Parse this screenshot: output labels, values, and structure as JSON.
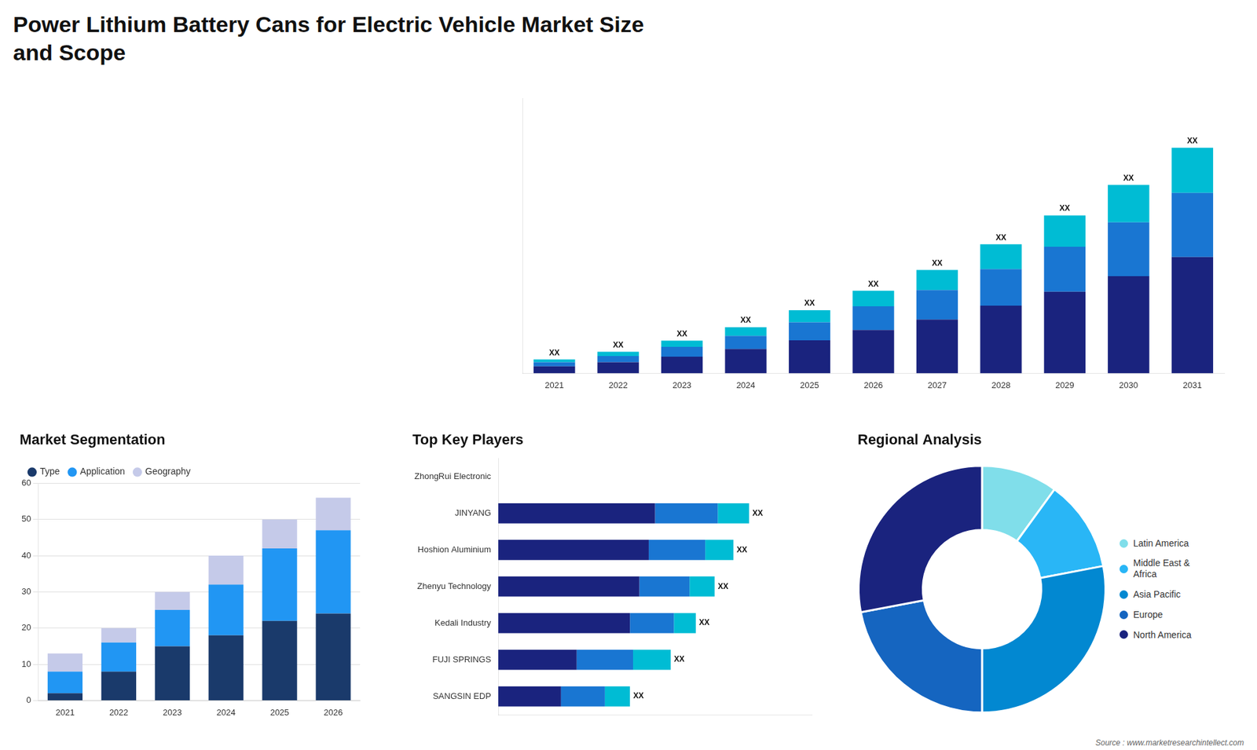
{
  "chart_data": [
    {
      "type": "bar",
      "title": "Power Lithium Battery Cans for Electric Vehicle Market Size\nand Scope",
      "categories": [
        "2021",
        "2022",
        "2023",
        "2024",
        "2025",
        "2026",
        "2027",
        "2028",
        "2029",
        "2030",
        "2031"
      ],
      "series": [
        {
          "color": "#1a237e",
          "values": [
            2.0,
            3.2,
            4.8,
            7.0,
            9.5,
            12.5,
            15.5,
            19.5,
            23.5,
            28.0,
            33.5
          ]
        },
        {
          "color": "#1976d2",
          "values": [
            1.2,
            1.8,
            2.8,
            3.8,
            5.2,
            6.8,
            8.5,
            10.5,
            13.0,
            15.5,
            18.5
          ]
        },
        {
          "color": "#00bcd4",
          "values": [
            0.8,
            1.2,
            1.8,
            2.5,
            3.5,
            4.5,
            5.8,
            7.2,
            9.0,
            10.8,
            13.0
          ],
          "value_labels": [
            "XX",
            "XX",
            "XX",
            "XX",
            "XX",
            "XX",
            "XX",
            "XX",
            "XX",
            "XX",
            "XX"
          ]
        }
      ],
      "stacked": true,
      "ylim": [
        0,
        79.3
      ],
      "grid": false,
      "tick_labels": "x"
    },
    {
      "type": "bar",
      "title": "Market Segmentation",
      "categories": [
        "2021",
        "2022",
        "2023",
        "2024",
        "2025",
        "2026"
      ],
      "series": [
        {
          "name": "Type",
          "color": "#1a3a6b",
          "values": [
            2,
            8,
            15,
            18,
            22,
            24
          ]
        },
        {
          "name": "Application",
          "color": "#2196f3",
          "values": [
            6,
            8,
            10,
            14,
            20,
            23
          ]
        },
        {
          "name": "Geography",
          "color": "#c5cae9",
          "values": [
            5,
            4,
            5,
            8,
            8,
            9
          ]
        }
      ],
      "stacked": true,
      "ylim": [
        0,
        60
      ],
      "yticks": [
        0,
        10,
        20,
        30,
        40,
        50,
        60
      ],
      "grid": true,
      "legend": "upper left"
    },
    {
      "type": "bar",
      "orientation": "horizontal",
      "title": "Top Key Players",
      "categories": [
        "ZhongRui Electronic",
        "JINYANG",
        "Hoshion Aluminium",
        "Zhenyu Technology",
        "Kedali Industry",
        "FUJI SPRINGS",
        "SANGSIN EDP"
      ],
      "series": [
        {
          "color": "#1a237e",
          "values": [
            0,
            5.0,
            4.8,
            4.5,
            4.2,
            2.5,
            2.0
          ]
        },
        {
          "color": "#1976d2",
          "values": [
            0,
            2.0,
            1.8,
            1.6,
            1.4,
            1.8,
            1.4
          ]
        },
        {
          "color": "#00bcd4",
          "values": [
            0,
            1.0,
            0.9,
            0.8,
            0.7,
            1.2,
            0.8
          ],
          "value_labels": [
            null,
            "XX",
            "XX",
            "XX",
            "XX",
            "XX",
            "XX"
          ]
        }
      ],
      "stacked": true,
      "xlim": [
        0,
        10
      ],
      "grid": false,
      "tick_labels": "y"
    },
    {
      "type": "donut",
      "title": "Regional Analysis",
      "categories": [
        "Latin America",
        "Middle East &\nAfrica",
        "Asia Pacific",
        "Europe",
        "North America"
      ],
      "values": [
        10,
        12,
        28,
        22,
        28
      ],
      "colors": [
        "#80deea",
        "#29b6f6",
        "#0288d1",
        "#1565c0",
        "#1a237e"
      ],
      "legend": "right",
      "annotations": [
        "Source : www.marketresearchintellect.com"
      ]
    }
  ]
}
